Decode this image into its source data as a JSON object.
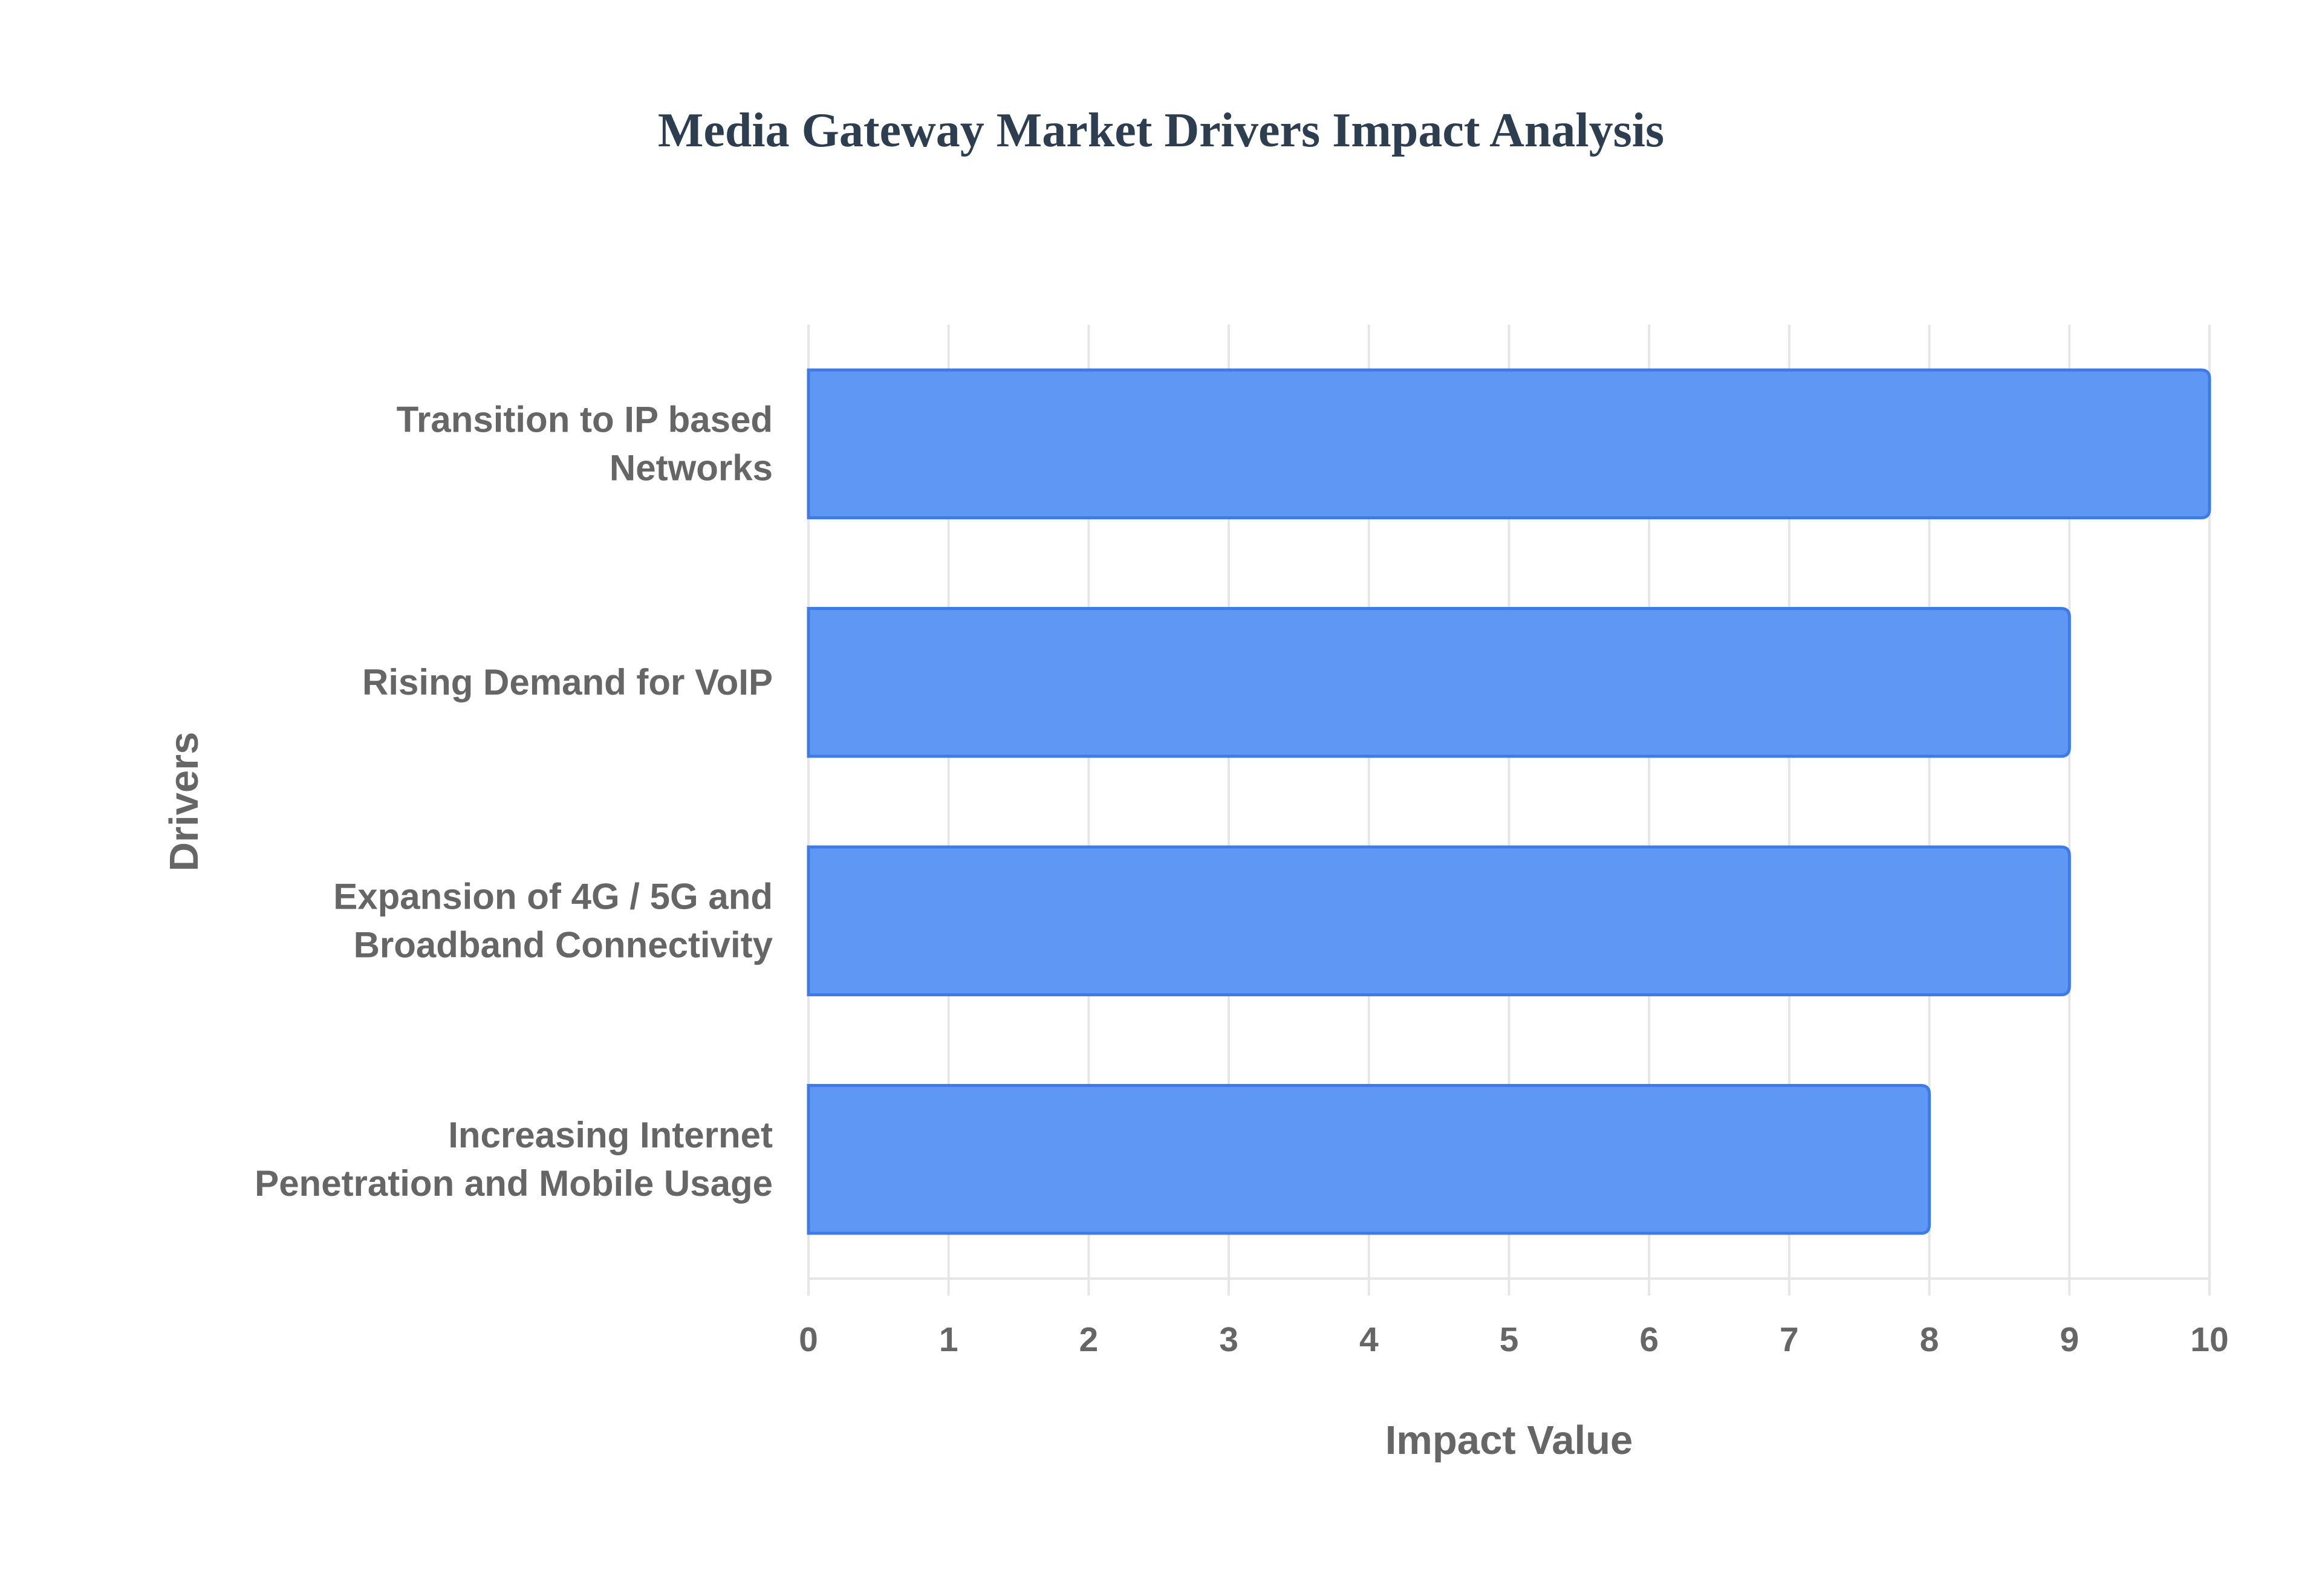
{
  "colors": {
    "bar_fill": "#5f97f5",
    "bar_stroke": "#3f7be6",
    "grid": "#e6e6e6",
    "text": "#666666",
    "title": "#2c3e50"
  },
  "chart_data": {
    "type": "bar",
    "orientation": "horizontal",
    "title": "Media Gateway Market Drivers Impact Analysis",
    "xlabel": "Impact Value",
    "ylabel": "Drivers",
    "categories": [
      [
        "Transition to IP based",
        "Networks"
      ],
      [
        "Rising Demand for VoIP"
      ],
      [
        "Expansion of 4G / 5G and",
        "Broadband Connectivity"
      ],
      [
        "Increasing Internet",
        "Penetration and Mobile Usage"
      ]
    ],
    "values": [
      10,
      9,
      9,
      8
    ],
    "xlim": [
      0,
      10
    ],
    "xticks": [
      "0",
      "1",
      "2",
      "3",
      "4",
      "5",
      "6",
      "7",
      "8",
      "9",
      "10"
    ],
    "grid": true,
    "legend": "none"
  }
}
